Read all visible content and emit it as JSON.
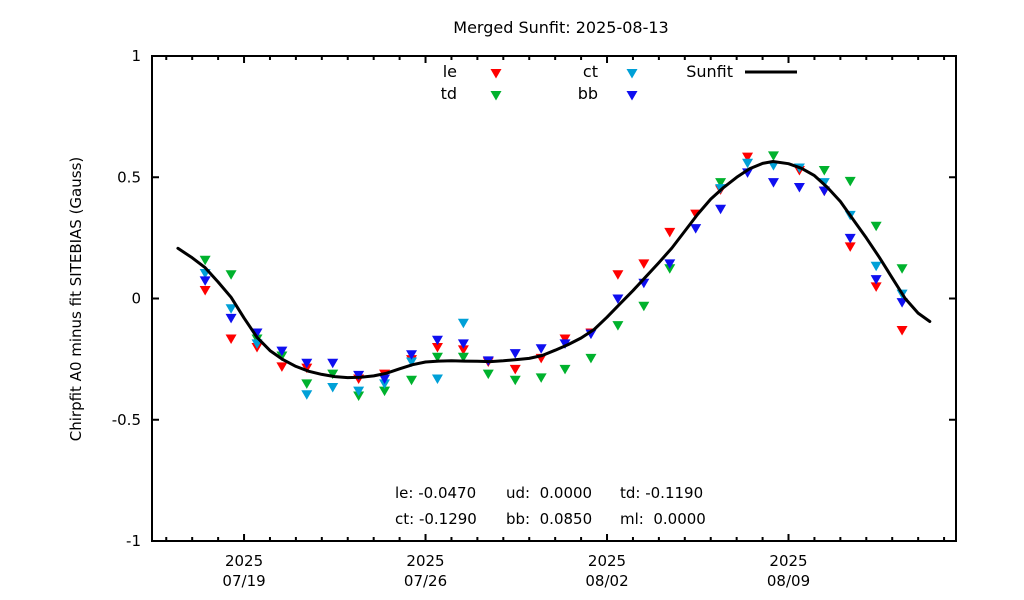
{
  "title": "Merged Sunfit: 2025-08-13",
  "background_color": "#ffffff",
  "foreground_color": "#000000",
  "chart_data": {
    "type": "scatter",
    "title": "Merged Sunfit: 2025-08-13",
    "xlabel": "",
    "ylabel": "Chirpfit A0 minus fit SITEBIAS (Gauss)",
    "grid": false,
    "x_unit": "days relative to 2025-07-19",
    "x_domain": [
      -3.55,
      27.46
    ],
    "y_domain": [
      -1,
      1
    ],
    "x_axis": {
      "major_ticks": [
        {
          "value": 0,
          "label_line1": "2025",
          "label_line2": "07/19"
        },
        {
          "value": 7,
          "label_line1": "2025",
          "label_line2": "07/26"
        },
        {
          "value": 14,
          "label_line1": "2025",
          "label_line2": "08/02"
        },
        {
          "value": 21,
          "label_line1": "2025",
          "label_line2": "08/09"
        }
      ],
      "minor_ticks": [
        -3,
        -2,
        -1,
        1,
        2,
        3,
        4,
        5,
        6,
        8,
        9,
        10,
        11,
        12,
        13,
        15,
        16,
        17,
        18,
        19,
        20,
        22,
        23,
        24,
        25,
        26,
        27
      ]
    },
    "y_axis": {
      "ticks": [
        {
          "value": 1,
          "label": "1"
        },
        {
          "value": 0.5,
          "label": "0.5"
        },
        {
          "value": 0,
          "label": "0"
        },
        {
          "value": -0.5,
          "label": "-0.5"
        },
        {
          "value": -1,
          "label": "-1"
        }
      ]
    },
    "series": [
      {
        "name": "le",
        "color": "#ff0000",
        "marker": "triangle-down",
        "points": [
          [
            -1.5,
            0.035
          ],
          [
            -0.5,
            -0.165
          ],
          [
            0.5,
            -0.2
          ],
          [
            1.46,
            -0.28
          ],
          [
            2.42,
            -0.285
          ],
          [
            4.42,
            -0.33
          ],
          [
            5.42,
            -0.31
          ],
          [
            6.46,
            -0.25
          ],
          [
            7.46,
            -0.2
          ],
          [
            8.46,
            -0.21
          ],
          [
            9.42,
            -0.26
          ],
          [
            10.46,
            -0.29
          ],
          [
            11.46,
            -0.245
          ],
          [
            12.38,
            -0.165
          ],
          [
            13.38,
            -0.14
          ],
          [
            14.42,
            0.1
          ],
          [
            15.42,
            0.145
          ],
          [
            16.42,
            0.275
          ],
          [
            17.42,
            0.35
          ],
          [
            18.38,
            0.45
          ],
          [
            19.42,
            0.585
          ],
          [
            21.42,
            0.53
          ],
          [
            22.38,
            0.445
          ],
          [
            23.38,
            0.215
          ],
          [
            24.38,
            0.05
          ],
          [
            25.38,
            -0.13
          ]
        ]
      },
      {
        "name": "td",
        "color": "#00b22d",
        "marker": "triangle-down",
        "points": [
          [
            -1.5,
            0.16
          ],
          [
            -0.5,
            0.1
          ],
          [
            0.5,
            -0.165
          ],
          [
            1.46,
            -0.235
          ],
          [
            2.42,
            -0.35
          ],
          [
            3.42,
            -0.31
          ],
          [
            4.42,
            -0.4
          ],
          [
            5.42,
            -0.38
          ],
          [
            6.46,
            -0.335
          ],
          [
            7.46,
            -0.24
          ],
          [
            8.46,
            -0.24
          ],
          [
            9.42,
            -0.31
          ],
          [
            10.46,
            -0.335
          ],
          [
            11.46,
            -0.325
          ],
          [
            12.38,
            -0.29
          ],
          [
            13.38,
            -0.245
          ],
          [
            14.42,
            -0.11
          ],
          [
            15.42,
            -0.03
          ],
          [
            16.42,
            0.125
          ],
          [
            18.38,
            0.48
          ],
          [
            20.42,
            0.59
          ],
          [
            22.38,
            0.53
          ],
          [
            23.38,
            0.485
          ],
          [
            24.38,
            0.3
          ],
          [
            25.38,
            0.125
          ]
        ]
      },
      {
        "name": "ct",
        "color": "#00a0d7",
        "marker": "triangle-down",
        "points": [
          [
            -1.5,
            0.105
          ],
          [
            -0.5,
            -0.04
          ],
          [
            0.5,
            -0.185
          ],
          [
            2.42,
            -0.395
          ],
          [
            3.42,
            -0.365
          ],
          [
            4.42,
            -0.38
          ],
          [
            5.42,
            -0.35
          ],
          [
            6.46,
            -0.26
          ],
          [
            7.46,
            -0.33
          ],
          [
            8.46,
            -0.1
          ],
          [
            18.38,
            0.455
          ],
          [
            19.42,
            0.56
          ],
          [
            20.42,
            0.55
          ],
          [
            21.42,
            0.54
          ],
          [
            22.38,
            0.48
          ],
          [
            23.38,
            0.345
          ],
          [
            24.38,
            0.135
          ],
          [
            25.38,
            0.02
          ]
        ]
      },
      {
        "name": "bb",
        "color": "#0f0ff0",
        "marker": "triangle-down",
        "points": [
          [
            -1.5,
            0.075
          ],
          [
            -0.5,
            -0.08
          ],
          [
            0.5,
            -0.14
          ],
          [
            1.46,
            -0.215
          ],
          [
            2.42,
            -0.265
          ],
          [
            3.42,
            -0.265
          ],
          [
            4.42,
            -0.315
          ],
          [
            5.42,
            -0.33
          ],
          [
            6.46,
            -0.23
          ],
          [
            7.46,
            -0.17
          ],
          [
            8.46,
            -0.185
          ],
          [
            9.42,
            -0.255
          ],
          [
            10.46,
            -0.225
          ],
          [
            11.46,
            -0.205
          ],
          [
            12.38,
            -0.185
          ],
          [
            13.38,
            -0.145
          ],
          [
            14.42,
            0.0
          ],
          [
            15.42,
            0.065
          ],
          [
            16.42,
            0.145
          ],
          [
            17.42,
            0.29
          ],
          [
            18.38,
            0.37
          ],
          [
            19.42,
            0.52
          ],
          [
            20.42,
            0.48
          ],
          [
            21.42,
            0.46
          ],
          [
            22.38,
            0.445
          ],
          [
            23.38,
            0.25
          ],
          [
            24.38,
            0.08
          ],
          [
            25.38,
            -0.015
          ]
        ]
      }
    ],
    "fit_curve": {
      "name": "Sunfit",
      "color": "#000000",
      "points": [
        [
          -2.55,
          0.207
        ],
        [
          -2.0,
          0.168
        ],
        [
          -1.5,
          0.127
        ],
        [
          -1.0,
          0.068
        ],
        [
          -0.5,
          0.005
        ],
        [
          0.0,
          -0.08
        ],
        [
          0.5,
          -0.16
        ],
        [
          1.0,
          -0.215
        ],
        [
          1.5,
          -0.252
        ],
        [
          2.0,
          -0.28
        ],
        [
          2.5,
          -0.3
        ],
        [
          3.0,
          -0.313
        ],
        [
          3.5,
          -0.322
        ],
        [
          4.0,
          -0.326
        ],
        [
          4.5,
          -0.325
        ],
        [
          5.0,
          -0.319
        ],
        [
          5.5,
          -0.308
        ],
        [
          6.0,
          -0.29
        ],
        [
          6.5,
          -0.273
        ],
        [
          7.0,
          -0.262
        ],
        [
          7.5,
          -0.258
        ],
        [
          8.0,
          -0.257
        ],
        [
          8.5,
          -0.258
        ],
        [
          9.0,
          -0.259
        ],
        [
          9.5,
          -0.26
        ],
        [
          10.0,
          -0.257
        ],
        [
          10.5,
          -0.252
        ],
        [
          11.0,
          -0.247
        ],
        [
          11.5,
          -0.235
        ],
        [
          12.0,
          -0.213
        ],
        [
          12.5,
          -0.19
        ],
        [
          13.0,
          -0.163
        ],
        [
          13.5,
          -0.128
        ],
        [
          14.0,
          -0.077
        ],
        [
          14.5,
          -0.022
        ],
        [
          15.0,
          0.032
        ],
        [
          15.5,
          0.09
        ],
        [
          16.0,
          0.148
        ],
        [
          16.5,
          0.208
        ],
        [
          17.0,
          0.278
        ],
        [
          17.5,
          0.348
        ],
        [
          18.0,
          0.41
        ],
        [
          18.5,
          0.458
        ],
        [
          19.0,
          0.5
        ],
        [
          19.5,
          0.535
        ],
        [
          20.0,
          0.557
        ],
        [
          20.4,
          0.565
        ],
        [
          21.0,
          0.556
        ],
        [
          21.5,
          0.537
        ],
        [
          22.0,
          0.507
        ],
        [
          22.5,
          0.458
        ],
        [
          23.0,
          0.4
        ],
        [
          23.5,
          0.325
        ],
        [
          24.0,
          0.25
        ],
        [
          24.5,
          0.17
        ],
        [
          25.0,
          0.085
        ],
        [
          25.5,
          0.0
        ],
        [
          26.0,
          -0.06
        ],
        [
          26.45,
          -0.095
        ]
      ]
    },
    "legend": {
      "position": "top-inside",
      "items": [
        {
          "label": "le",
          "color": "#ff0000"
        },
        {
          "label": "ct",
          "color": "#00a0d7"
        },
        {
          "label": "td",
          "color": "#00b22d"
        },
        {
          "label": "bb",
          "color": "#0f0ff0"
        }
      ],
      "line_item": {
        "label": "Sunfit",
        "color": "#000000"
      }
    },
    "stats": {
      "rows": [
        [
          "le: -0.0470",
          "ud:  0.0000",
          "td: -0.1190"
        ],
        [
          "ct: -0.1290",
          "bb:  0.0850",
          "ml:  0.0000"
        ]
      ]
    }
  }
}
